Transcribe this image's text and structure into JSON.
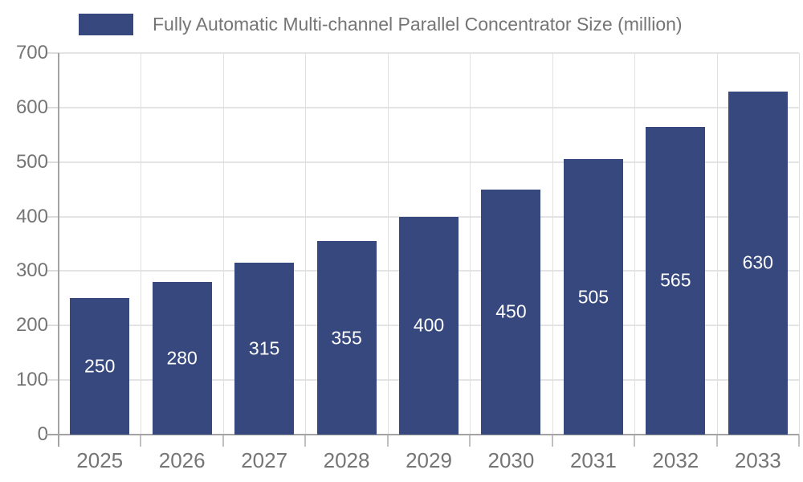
{
  "legend": {
    "label": "Fully Automatic Multi-channel Parallel Concentrator Size (million)",
    "swatch_color": "#36487D"
  },
  "chart_data": {
    "type": "bar",
    "title": "Fully Automatic Multi-channel Parallel Concentrator Size (million)",
    "categories": [
      "2025",
      "2026",
      "2027",
      "2028",
      "2029",
      "2030",
      "2031",
      "2032",
      "2033"
    ],
    "values": [
      250,
      280,
      315,
      355,
      400,
      450,
      505,
      565,
      630
    ],
    "xlabel": "",
    "ylabel": "",
    "ylim": [
      0,
      700
    ],
    "yticks": [
      0,
      100,
      200,
      300,
      400,
      500,
      600,
      700
    ],
    "grid": true,
    "legend_position": "top",
    "bar_color": "#36487D",
    "value_label_color": "#FFFFFF",
    "axis_text_color": "#757575",
    "value_label_position": "bar-center"
  }
}
